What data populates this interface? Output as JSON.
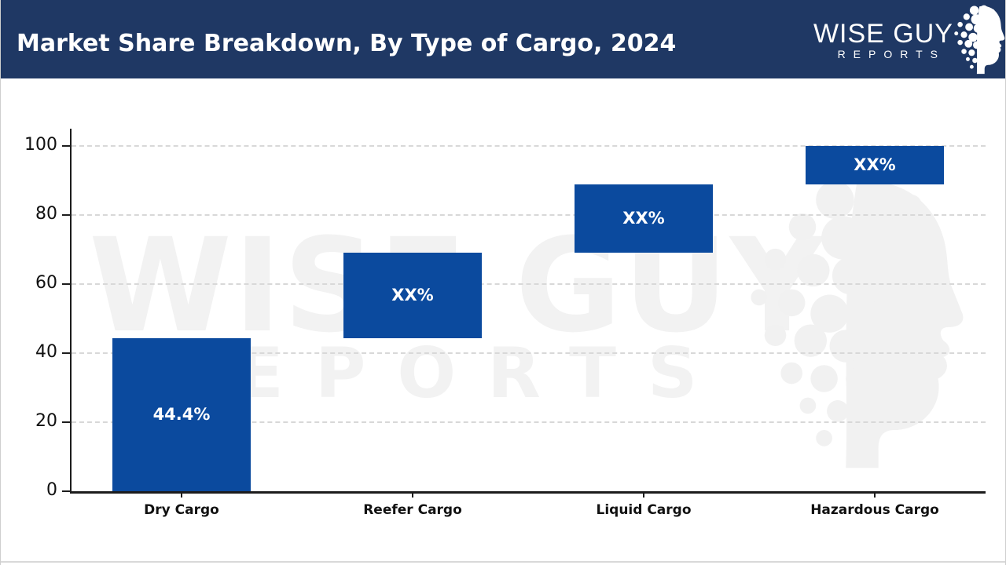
{
  "header": {
    "title": "Market Share Breakdown, By Type of Cargo, 2024",
    "logo": {
      "wordmark": "WISE GUY",
      "subtext": "REPORTS"
    }
  },
  "watermark": {
    "wordmark": "WISE GUY",
    "subtext": "REPORTS"
  },
  "chart_data": {
    "type": "bar",
    "subtype": "waterfall",
    "title": "Market Share Breakdown, By Type of Cargo, 2024",
    "categories": [
      "Dry Cargo",
      "Reefer Cargo",
      "Liquid Cargo",
      "Hazardous Cargo"
    ],
    "segments": [
      {
        "category": "Dry Cargo",
        "start": 0,
        "end": 44.4,
        "label": "44.4%"
      },
      {
        "category": "Reefer Cargo",
        "start": 44.4,
        "end": 69.1,
        "label": "XX%"
      },
      {
        "category": "Liquid Cargo",
        "start": 69.1,
        "end": 88.9,
        "label": "XX%"
      },
      {
        "category": "Hazardous Cargo",
        "start": 88.9,
        "end": 100,
        "label": "XX%"
      }
    ],
    "yticks": [
      0,
      20,
      40,
      60,
      80,
      100
    ],
    "ylim": [
      0,
      105
    ],
    "grid": "horizontal-dashed",
    "legend": "none",
    "bar_color": "#0b4a9e",
    "bar_label_color": "#ffffff"
  },
  "colors": {
    "header_bg": "#1f3864",
    "bar": "#0b4a9e",
    "grid": "#d8d8d8",
    "axis": "#1c1c1c",
    "watermark": "#f2f2f2",
    "canvas": "#ffffff"
  }
}
